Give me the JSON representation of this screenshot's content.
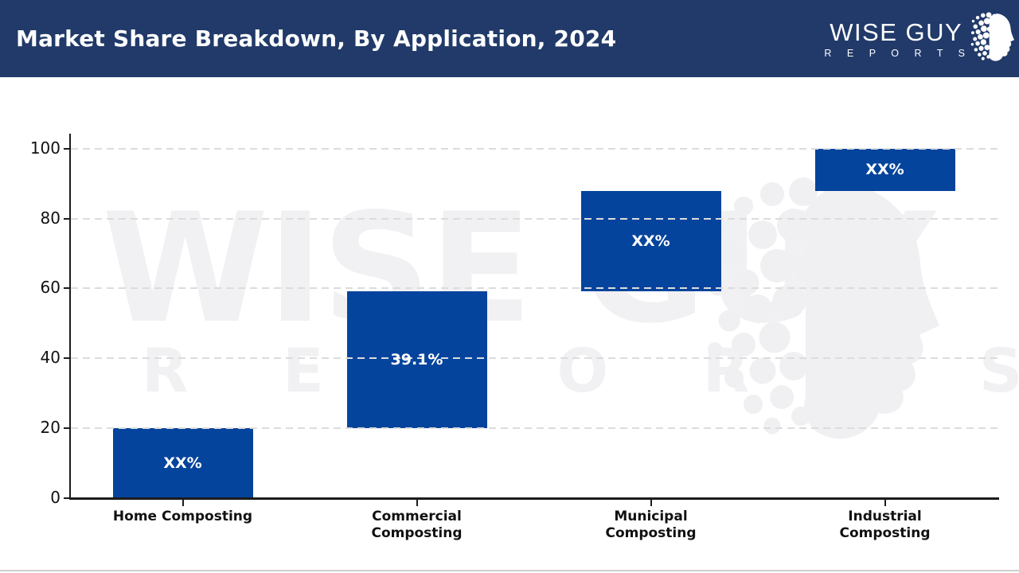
{
  "header": {
    "title": "Market Share Breakdown, By Application, 2024",
    "bg_color": "#213A69",
    "logo": {
      "name": "WISE GUY",
      "subtitle": "R E P O R T S"
    }
  },
  "watermark": {
    "line1": "WISE GUY",
    "line2": "R E P O R T S"
  },
  "colors": {
    "bar": "#04449C",
    "header_bg": "#213A69",
    "axis": "#1C1C1C",
    "gridline": "#DCDCDC",
    "watermark": "#F1F1F3",
    "bar_label_text": "#FFFFFF"
  },
  "chart_data": {
    "type": "bar",
    "subtype": "waterfall-floating-bars",
    "title": "Market Share Breakdown, By Application, 2024",
    "categories": [
      "Home Composting",
      "Commercial Composting",
      "Municipal Composting",
      "Industrial Composting"
    ],
    "category_lines": [
      [
        "Home Composting"
      ],
      [
        "Commercial",
        "Composting"
      ],
      [
        "Municipal",
        "Composting"
      ],
      [
        "Industrial",
        "Composting"
      ]
    ],
    "segments": [
      {
        "category": "Home Composting",
        "start": 0,
        "end": 20,
        "label": "XX%"
      },
      {
        "category": "Commercial Composting",
        "start": 20,
        "end": 59.1,
        "label": "39.1%",
        "value": 39.1
      },
      {
        "category": "Municipal Composting",
        "start": 59.1,
        "end": 88,
        "label": "XX%"
      },
      {
        "category": "Industrial Composting",
        "start": 88,
        "end": 100,
        "label": "XX%"
      }
    ],
    "values_approx": [
      20,
      39.1,
      28.9,
      12
    ],
    "xlabel": "",
    "ylabel": "",
    "ylim": [
      0,
      104
    ],
    "yticks": [
      0,
      20,
      40,
      60,
      80,
      100
    ],
    "grid": "horizontal-dashed",
    "legend": null,
    "bar_color": "#04449C"
  }
}
